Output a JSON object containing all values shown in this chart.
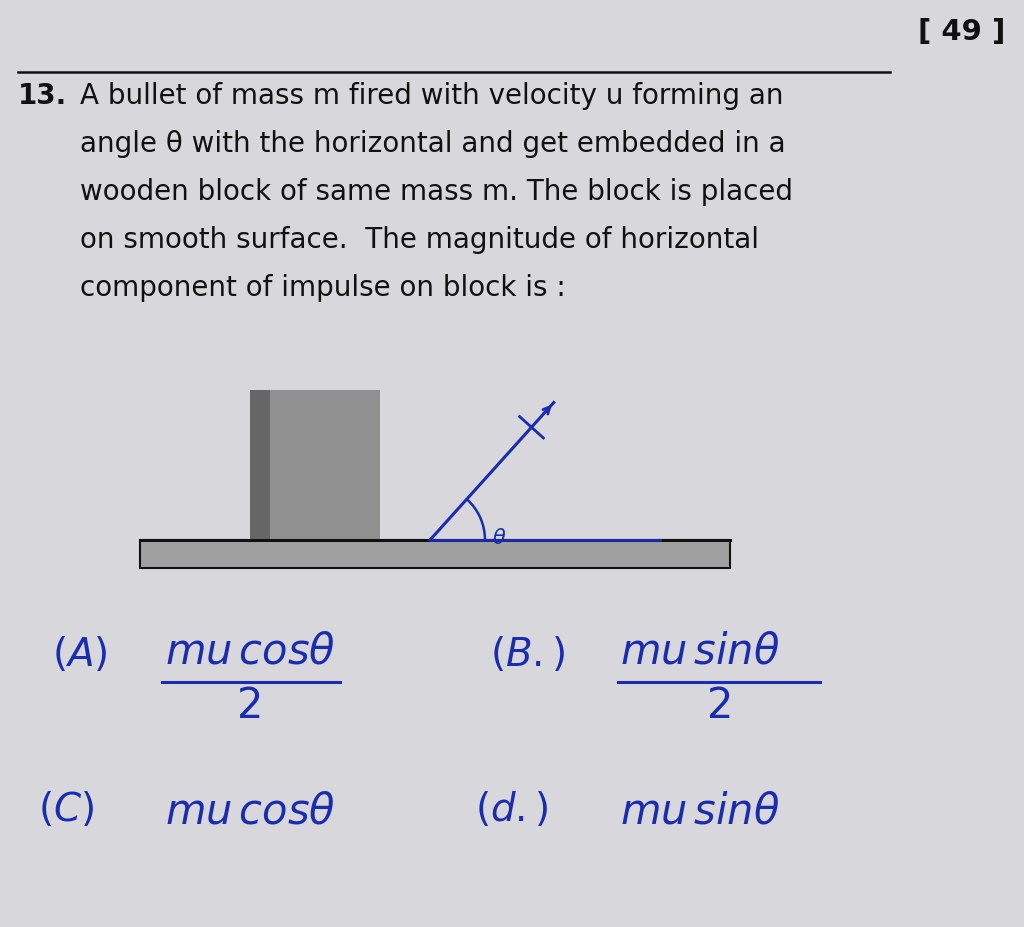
{
  "page_number": "[ 49 ]",
  "question_number": "13.",
  "question_lines": [
    "A bullet of mass m fired with velocity u forming an",
    "angle θ with the horizontal and get embedded in a",
    "wooden block of same mass m. The block is placed",
    "on smooth surface.  The magnitude of horizontal",
    "component of impulse on block is :"
  ],
  "bg_color": "#d8d8dc",
  "text_color": "#111111",
  "line_color": "#111111",
  "block_fill": "#888888",
  "surface_fill": "#999999",
  "draw_color": "#1a2db0",
  "fig_width": 10.24,
  "fig_height": 9.27,
  "dpi": 100
}
